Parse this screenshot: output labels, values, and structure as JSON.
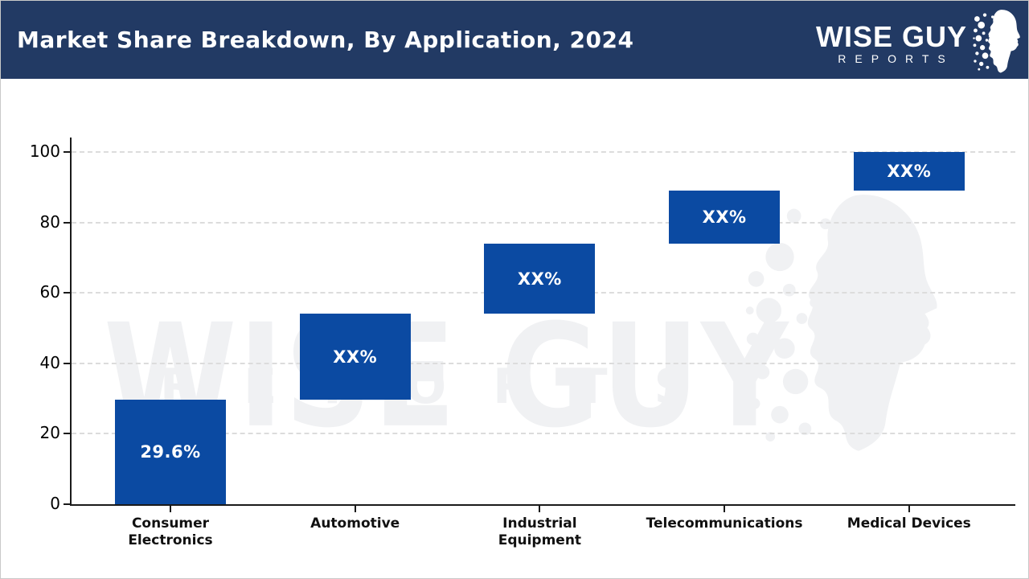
{
  "header": {
    "title": "Market Share Breakdown, By Application, 2024",
    "logo": {
      "brand": "WISE GUY",
      "sub": "REPORTS"
    }
  },
  "watermark": {
    "brand": "WISE GUY",
    "sub": "REPORTS"
  },
  "colors": {
    "header_bg": "#223A64",
    "bar": "#0B4AA2",
    "bar_label": "#FFFFFF",
    "watermark": "#F0F1F3",
    "grid": "#DCDCDC",
    "axis": "#1A1A1A",
    "page_border": "#C9C9C9"
  },
  "chart_data": {
    "type": "bar",
    "variant": "waterfall",
    "title": "Market Share Breakdown, By Application, 2024",
    "categories": [
      "Consumer Electronics",
      "Automotive",
      "Industrial Equipment",
      "Telecommunications",
      "Medical Devices"
    ],
    "category_lines": [
      [
        "Consumer",
        "Electronics"
      ],
      [
        "Automotive"
      ],
      [
        "Industrial",
        "Equipment"
      ],
      [
        "Telecommunications"
      ],
      [
        "Medical Devices"
      ]
    ],
    "segments": [
      {
        "category": "Consumer Electronics",
        "start": 0,
        "end": 29.6,
        "label": "29.6%"
      },
      {
        "category": "Automotive",
        "start": 29.6,
        "end": 54,
        "label": "XX%"
      },
      {
        "category": "Industrial Equipment",
        "start": 54,
        "end": 74,
        "label": "XX%"
      },
      {
        "category": "Telecommunications",
        "start": 74,
        "end": 89,
        "label": "XX%"
      },
      {
        "category": "Medical Devices",
        "start": 89,
        "end": 100,
        "label": "XX%"
      }
    ],
    "implied_values": [
      29.6,
      24.4,
      20,
      15,
      11
    ],
    "ylabel": "",
    "xlabel": "",
    "yticks": [
      0,
      20,
      40,
      60,
      80,
      100
    ],
    "ylim": [
      0,
      105
    ],
    "grid": "horizontal dashed",
    "legend": "none"
  }
}
